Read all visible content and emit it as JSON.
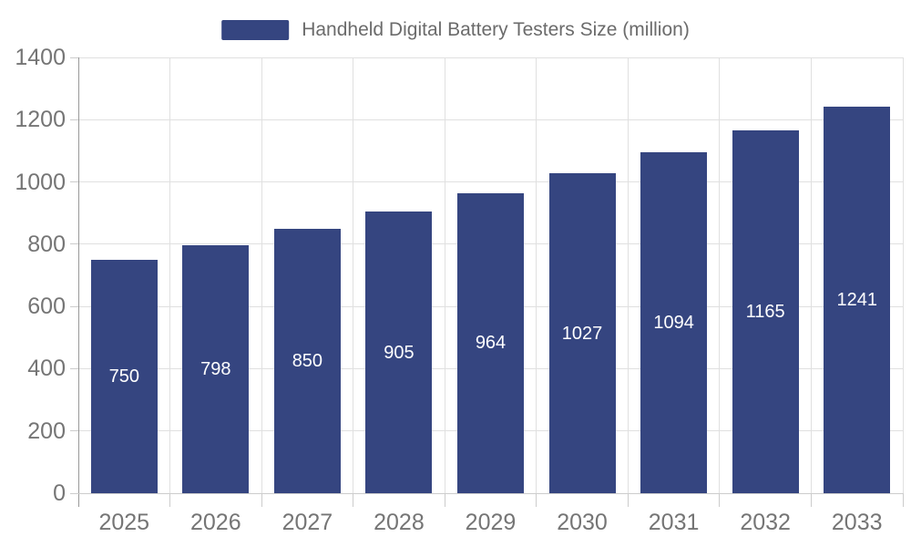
{
  "legend": {
    "label": "Handheld Digital Battery Testers Size (million)"
  },
  "chart_data": {
    "type": "bar",
    "title": "Handheld Digital Battery Testers Size (million)",
    "categories": [
      "2025",
      "2026",
      "2027",
      "2028",
      "2029",
      "2030",
      "2031",
      "2032",
      "2033"
    ],
    "values": [
      750,
      798,
      850,
      905,
      964,
      1027,
      1094,
      1165,
      1241
    ],
    "series": [
      {
        "name": "Handheld Digital Battery Testers Size (million)",
        "values": [
          750,
          798,
          850,
          905,
          964,
          1027,
          1094,
          1165,
          1241
        ]
      }
    ],
    "xlabel": "",
    "ylabel": "",
    "ylim": [
      0,
      1400
    ],
    "yticks": [
      0,
      200,
      400,
      600,
      800,
      1000,
      1200,
      1400
    ],
    "grid": true,
    "legend_position": "top-center",
    "bar_color": "#354580",
    "value_label_color": "#ffffff",
    "value_labels_inside": true
  },
  "colors": {
    "background": "#ffffff",
    "grid_line": "#e0e0e0",
    "tick_line": "#cccccc",
    "axis_line_y": "#999999",
    "axis_line_x": "#cccccc",
    "tick_label": "#757575",
    "title_text": "#6b6b6b"
  }
}
